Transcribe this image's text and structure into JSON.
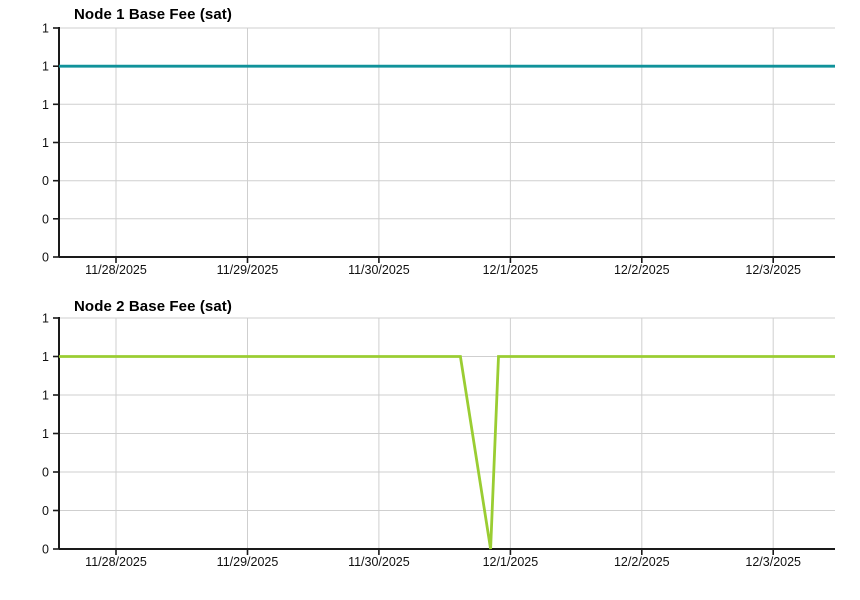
{
  "colors": {
    "background": "#FFFFFF",
    "grid": "#CFCFCF",
    "axis": "#1A1A1A",
    "tick_text": "#111111",
    "title_text": "#000000",
    "node1_line": "#10929A",
    "node2_line": "#9ACD32"
  },
  "chart_data": [
    {
      "type": "line",
      "title": "Node 1 Base Fee (sat)",
      "legend": "none",
      "grid": true,
      "x_axis": {
        "tick_labels": [
          "11/28/2025",
          "11/29/2025",
          "11/30/2025",
          "12/1/2025",
          "12/2/2025",
          "12/3/2025"
        ],
        "tick_positions_days": [
          0,
          1,
          2,
          3,
          4,
          5
        ],
        "range_days": [
          -0.434,
          5.47
        ]
      },
      "y_axis": {
        "tick_labels": [
          "1",
          "1",
          "1",
          "1",
          "0",
          "0",
          "0"
        ],
        "tick_values": [
          1.2,
          1.0,
          0.8,
          0.6,
          0.4,
          0.2,
          0.0
        ],
        "range": [
          0,
          1.2
        ]
      },
      "series": [
        {
          "name": "node1-base-fee",
          "color": "#10929A",
          "points_days_value": [
            [
              -0.434,
              1
            ],
            [
              5.47,
              1
            ]
          ]
        }
      ]
    },
    {
      "type": "line",
      "title": "Node 2 Base Fee (sat)",
      "legend": "none",
      "grid": true,
      "x_axis": {
        "tick_labels": [
          "11/28/2025",
          "11/29/2025",
          "11/30/2025",
          "12/1/2025",
          "12/2/2025",
          "12/3/2025"
        ],
        "tick_positions_days": [
          0,
          1,
          2,
          3,
          4,
          5
        ],
        "range_days": [
          -0.434,
          5.47
        ]
      },
      "y_axis": {
        "tick_labels": [
          "1",
          "1",
          "1",
          "1",
          "0",
          "0",
          "0"
        ],
        "tick_values": [
          1.2,
          1.0,
          0.8,
          0.6,
          0.4,
          0.2,
          0.0
        ],
        "range": [
          0,
          1.2
        ]
      },
      "series": [
        {
          "name": "node2-base-fee",
          "color": "#9ACD32",
          "points_days_value": [
            [
              -0.434,
              1
            ],
            [
              2.62,
              1
            ],
            [
              2.85,
              0
            ],
            [
              2.91,
              1
            ],
            [
              5.47,
              1
            ]
          ]
        }
      ]
    }
  ]
}
